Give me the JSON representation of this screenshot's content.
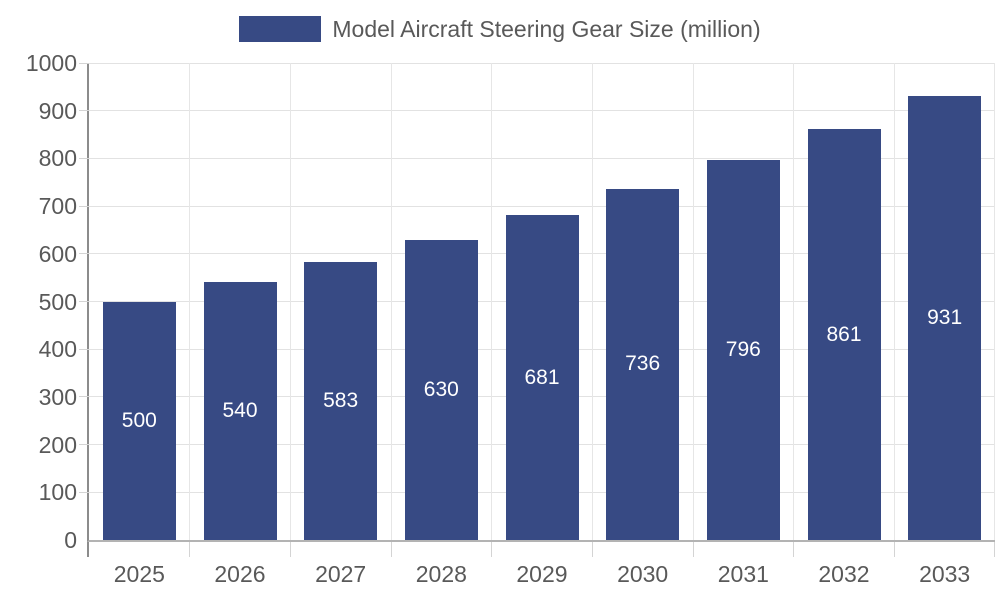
{
  "chart_data": {
    "type": "bar",
    "title": "Model Aircraft Steering Gear Size (million)",
    "legend": {
      "label": "Model Aircraft Steering Gear Size (million)",
      "position": "top-center"
    },
    "categories": [
      "2025",
      "2026",
      "2027",
      "2028",
      "2029",
      "2030",
      "2031",
      "2032",
      "2033"
    ],
    "series": [
      {
        "name": "Model Aircraft Steering Gear Size (million)",
        "values": [
          500,
          540,
          583,
          630,
          681,
          736,
          796,
          861,
          931
        ]
      }
    ],
    "xlabel": "",
    "ylabel": "",
    "ylim": [
      0,
      1000
    ],
    "ytick_step": 100,
    "ytick_labels": [
      "0",
      "100",
      "200",
      "300",
      "400",
      "500",
      "600",
      "700",
      "800",
      "900",
      "1000"
    ],
    "grid": true,
    "bar_labels_shown": true,
    "colors": {
      "bar": "#374a84",
      "bar_label": "#ffffff",
      "axis_text": "#595959",
      "gridline": "#e2e2e2",
      "y_axis_line": "#8c8c8c",
      "x_axis_line": "#b3b3b3"
    }
  }
}
